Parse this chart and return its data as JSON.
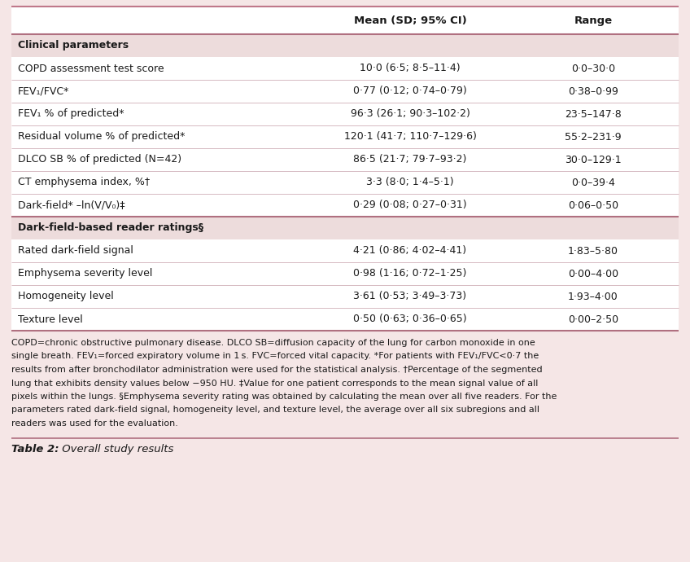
{
  "bg_color": "#f5e6e6",
  "table_bg": "#ffffff",
  "section_bg": "#eddcdc",
  "header_row": [
    "",
    "Mean (SD; 95% CI)",
    "Range"
  ],
  "section1_header": "Clinical parameters",
  "section1_rows": [
    [
      "COPD assessment test score",
      "10·0 (6·5; 8·5–11·4)",
      "0·0–30·0"
    ],
    [
      "FEV₁/FVC*",
      "0·77 (0·12; 0·74–0·79)",
      "0·38–0·99"
    ],
    [
      "FEV₁ % of predicted*",
      "96·3 (26·1; 90·3–102·2)",
      "23·5–147·8"
    ],
    [
      "Residual volume % of predicted*",
      "120·1 (41·7; 110·7–129·6)",
      "55·2–231·9"
    ],
    [
      "DLCO SB % of predicted (N=42)",
      "86·5 (21·7; 79·7–93·2)",
      "30·0–129·1"
    ],
    [
      "CT emphysema index, %†",
      "3·3 (8·0; 1·4–5·1)",
      "0·0–39·4"
    ],
    [
      "Dark-field* –ln(V/V₀)‡",
      "0·29 (0·08; 0·27–0·31)",
      "0·06–0·50"
    ]
  ],
  "section2_header": "Dark-field-based reader ratings§",
  "section2_rows": [
    [
      "Rated dark-field signal",
      "4·21 (0·86; 4·02–4·41)",
      "1·83–5·80"
    ],
    [
      "Emphysema severity level",
      "0·98 (1·16; 0·72–1·25)",
      "0·00–4·00"
    ],
    [
      "Homogeneity level",
      "3·61 (0·53; 3·49–3·73)",
      "1·93–4·00"
    ],
    [
      "Texture level",
      "0·50 (0·63; 0·36–0·65)",
      "0·00–2·50"
    ]
  ],
  "footnote_lines": [
    "COPD=chronic obstructive pulmonary disease. DLCO SB=diffusion capacity of the lung for carbon monoxide in one",
    "single breath. FEV₁=forced expiratory volume in 1 s. FVC=forced vital capacity. *For patients with FEV₁/FVC<0·7 the",
    "results from after bronchodilator administration were used for the statistical analysis. †Percentage of the segmented",
    "lung that exhibits density values below −950 HU. ‡Value for one patient corresponds to the mean signal value of all",
    "pixels within the lungs. §Emphysema severity rating was obtained by calculating the mean over all five readers. For the",
    "parameters rated dark-field signal, homogeneity level, and texture level, the average over all six subregions and all",
    "readers was used for the evaluation."
  ],
  "caption_bold": "Table 2:",
  "caption_rest": " Overall study results",
  "border_color": "#c0788a",
  "line_color_heavy": "#b07080",
  "line_color_light": "#d0b0b8",
  "text_color": "#1a1a1a",
  "font_size_header": 9.5,
  "font_size_body": 9.0,
  "font_size_footnote": 8.0,
  "font_size_caption": 9.5
}
